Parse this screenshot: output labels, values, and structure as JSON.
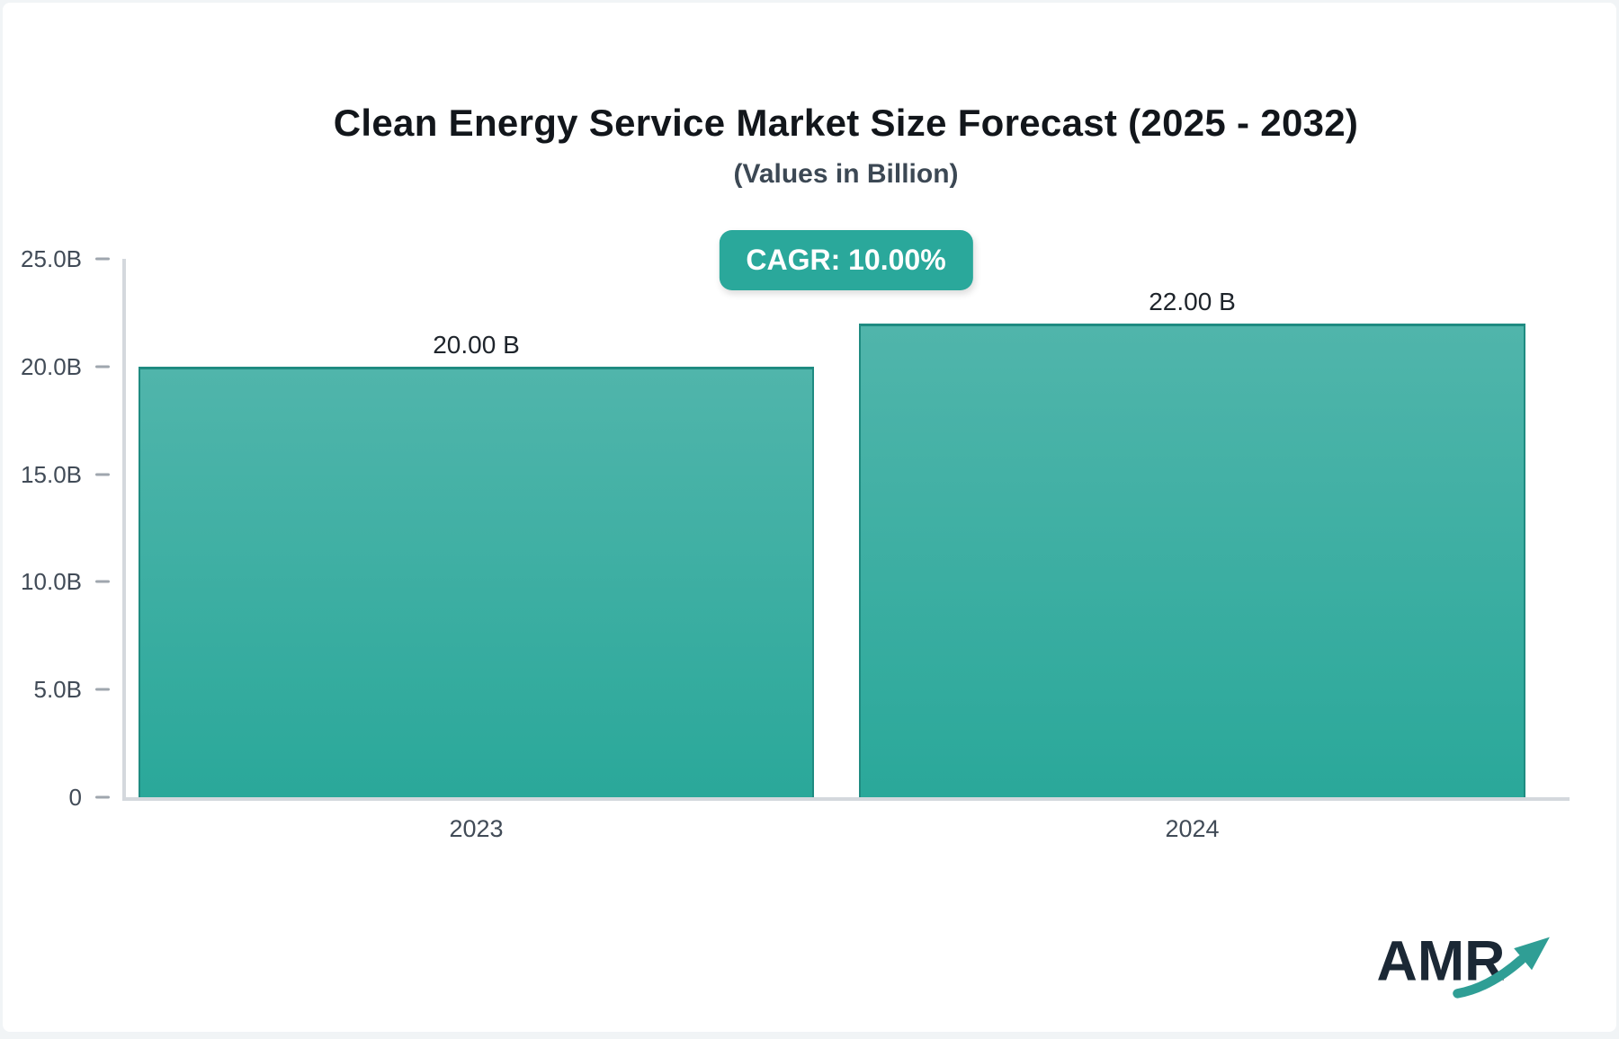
{
  "page": {
    "title": "Clean Energy Service Market Size Forecast (2025 - 2032)",
    "subtitle": "(Values in Billion)",
    "cagr_badge": "CAGR: 10.00%",
    "logo_text": "AMR"
  },
  "colors": {
    "bar_top": "#50b5ab",
    "bar_bottom": "#2aa89a",
    "bar_border": "#1f8b81",
    "badge_bg": "#2aa89b",
    "axis_line": "#d4d8dd",
    "tick": "#9fa6ae",
    "label": "#414b57",
    "title": "#12161b",
    "logo_navy": "#1b2835",
    "logo_teal": "#2f9e95"
  },
  "chart_data": {
    "type": "bar",
    "title": "Clean Energy Service Market Size Forecast (2025 - 2032)",
    "subtitle": "(Values in Billion)",
    "cagr": "CAGR: 10.00%",
    "categories": [
      "2023",
      "2024"
    ],
    "values": [
      20.0,
      22.0
    ],
    "value_labels": [
      "20.00 B",
      "22.00 B"
    ],
    "unit": "Billion",
    "ylim": [
      0,
      25
    ],
    "y_ticks": [
      "25.0B",
      "20.0B",
      "15.0B",
      "10.0B",
      "5.0B",
      "0"
    ],
    "grid": false,
    "legend": false,
    "bar_color": "teal gradient"
  }
}
